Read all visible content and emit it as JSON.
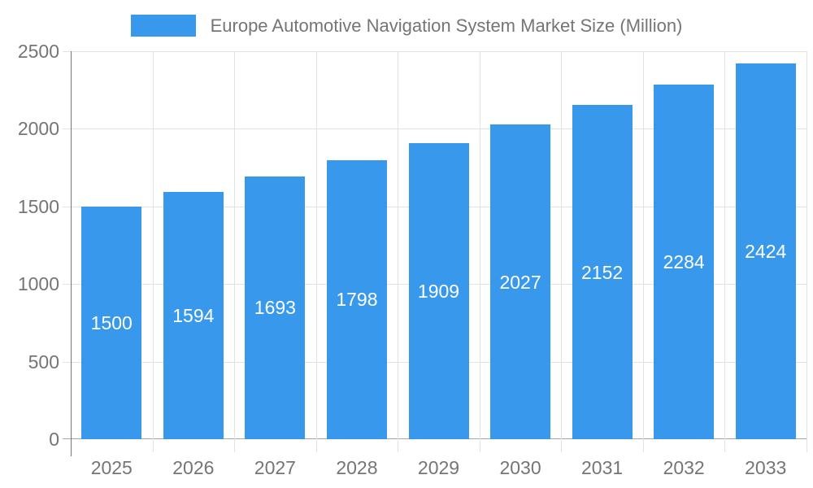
{
  "legend": {
    "label": "Europe Automotive Navigation System Market Size (Million)",
    "swatch_color": "#3898ec"
  },
  "chart_data": {
    "type": "bar",
    "title": "Europe Automotive Navigation System Market Size (Million)",
    "categories": [
      "2025",
      "2026",
      "2027",
      "2028",
      "2029",
      "2030",
      "2031",
      "2032",
      "2033"
    ],
    "values": [
      1500,
      1594,
      1693,
      1798,
      1909,
      2027,
      2152,
      2284,
      2424
    ],
    "xlabel": "",
    "ylabel": "",
    "ylim": [
      0,
      2500
    ],
    "yticks": [
      0,
      500,
      1000,
      1500,
      2000,
      2500
    ],
    "grid": true,
    "legend_position": "top",
    "bar_color": "#3898ec",
    "bar_label_color": "#ffffff",
    "axis_text_color": "#757575",
    "grid_color": "#e2e2e2"
  }
}
